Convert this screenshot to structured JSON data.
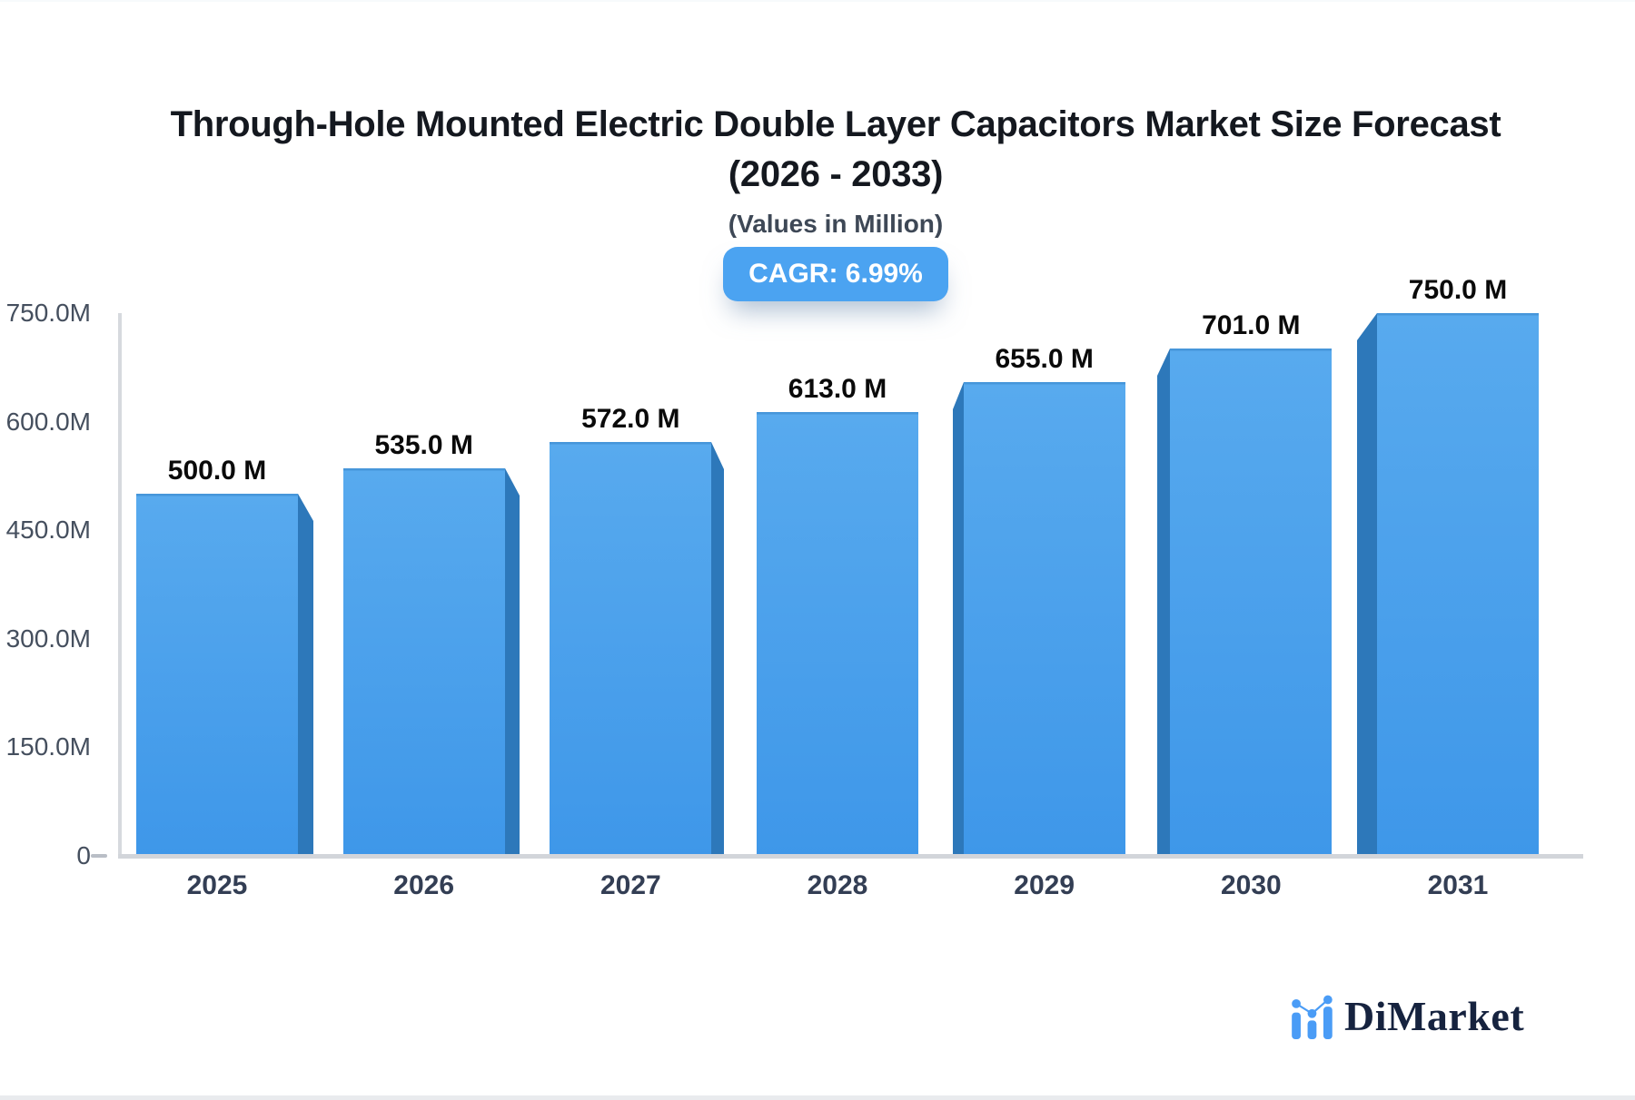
{
  "header": {
    "title_line1": "Through-Hole Mounted Electric Double Layer Capacitors Market Size Forecast",
    "title_line2": "(2026 - 2033)",
    "subtitle": "(Values in Million)",
    "cagr_badge": "CAGR: 6.99%"
  },
  "chart_data": {
    "type": "bar",
    "title": "Through-Hole Mounted Electric Double Layer Capacitors Market Size Forecast (2026 - 2033)",
    "subtitle": "(Values in Million)",
    "cagr": "6.99%",
    "unit": "Million",
    "categories": [
      "2025",
      "2026",
      "2027",
      "2028",
      "2029",
      "2030",
      "2031"
    ],
    "values": [
      500,
      535,
      572,
      613,
      655,
      701,
      750
    ],
    "bar_labels": [
      "500.0 M",
      "535.0 M",
      "572.0 M",
      "613.0 M",
      "655.0 M",
      "701.0 M",
      "750.0 M"
    ],
    "y_axis": {
      "ticks": [
        0,
        150,
        300,
        450,
        600,
        750
      ],
      "tick_labels": [
        "0",
        "150.0M",
        "300.0M",
        "450.0M",
        "600.0M",
        "750.0M"
      ],
      "ylim": [
        0,
        750
      ]
    },
    "grid": false,
    "legend": false,
    "bar_color_top": "#58aaee",
    "bar_color_bottom": "#3e97e9",
    "bar_side_color": "#2d78ba",
    "badge_color": "#4ba3f1"
  },
  "footer": {
    "brand": "DiMarket"
  }
}
